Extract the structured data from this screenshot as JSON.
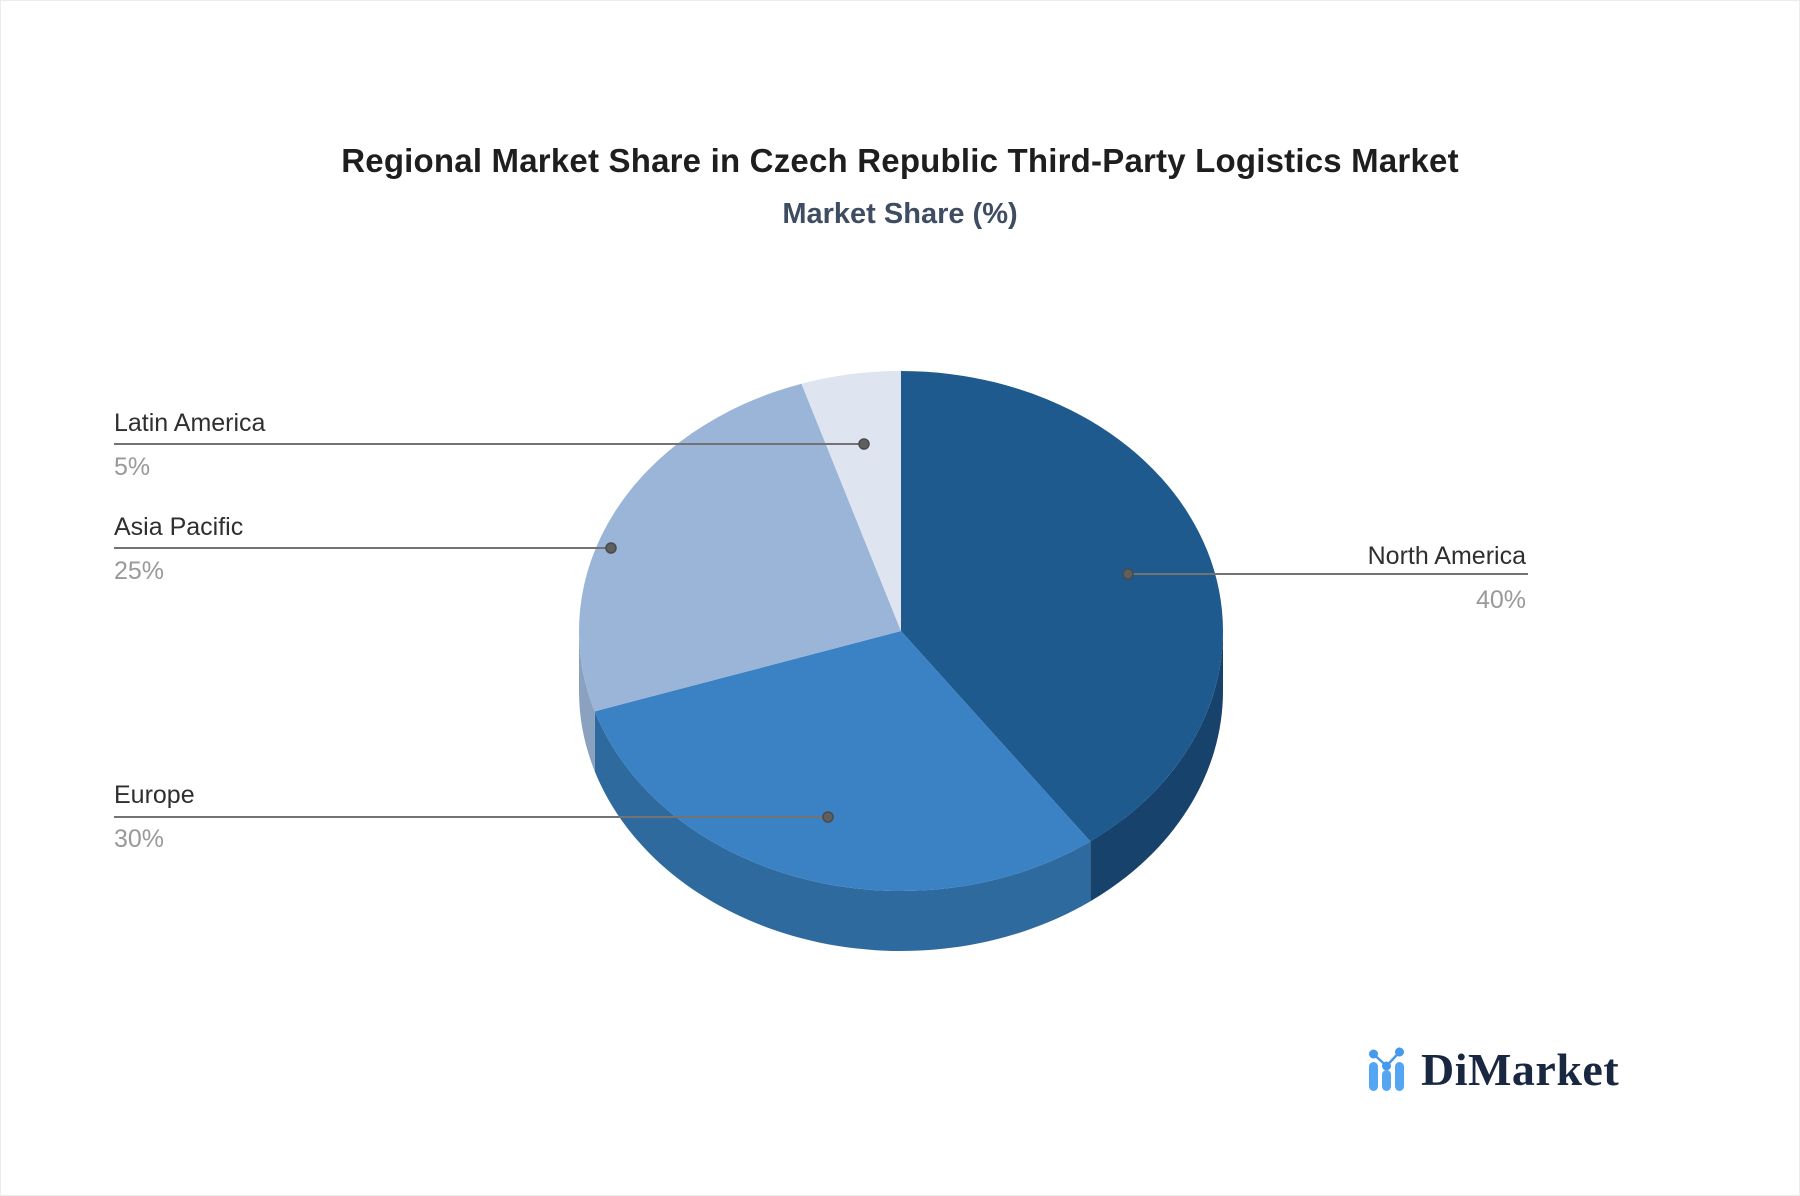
{
  "title": "Regional Market Share in Czech Republic Third-Party Logistics Market",
  "subtitle": "Market Share (%)",
  "brand": {
    "name": "DiMarket"
  },
  "chart_data": {
    "type": "pie",
    "style": "3d",
    "title": "Regional Market Share in Czech Republic Third-Party Logistics Market",
    "subtitle": "Market Share (%)",
    "unit": "%",
    "legend_position": "none",
    "start_angle_deg": 0,
    "direction": "clockwise",
    "slices": [
      {
        "label": "North America",
        "value": 40,
        "display": "40%",
        "color": "#1E5A8D",
        "side_color": "#17426B",
        "label_side": "right"
      },
      {
        "label": "Europe",
        "value": 30,
        "display": "30%",
        "color": "#3B82C4",
        "side_color": "#2F6A9F",
        "label_side": "left"
      },
      {
        "label": "Asia Pacific",
        "value": 25,
        "display": "25%",
        "color": "#9AB5D8",
        "side_color": "#8AA1BF",
        "label_side": "left"
      },
      {
        "label": "Latin America",
        "value": 5,
        "display": "5%",
        "color": "#DEE5F0",
        "side_color": "#C5CFE0",
        "label_side": "left"
      }
    ],
    "connector_color": "#737373",
    "connector_dot_color": "#5f5f5f"
  }
}
